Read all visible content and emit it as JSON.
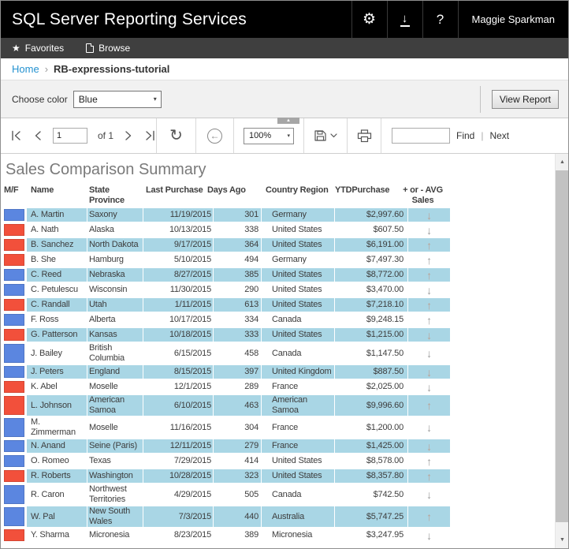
{
  "header": {
    "app_title": "SQL Server Reporting Services",
    "user_name": "Maggie Sparkman"
  },
  "nav": {
    "favorites": "Favorites",
    "browse": "Browse"
  },
  "breadcrumb": {
    "home": "Home",
    "separator": "›",
    "current": "RB-expressions-tutorial"
  },
  "parameters": {
    "label": "Choose color",
    "selected_value": "Blue",
    "view_report_label": "View Report"
  },
  "toolbar": {
    "page_value": "1",
    "of_label": "of 1",
    "zoom_value": "100%",
    "find_label": "Find",
    "find_separator": "|",
    "next_label": "Next"
  },
  "icons": {
    "gear": "⚙",
    "download_arrow": "↓",
    "help": "?",
    "star": "★",
    "caret_down": "▾",
    "refresh": "↻",
    "back_arrow": "←",
    "scroll_up": "▲",
    "scroll_down": "▼",
    "collapse_up": "▲",
    "trend": {
      "up": "↑",
      "down": "↓"
    }
  },
  "colors": {
    "squares": {
      "blue": "#5b86e0",
      "red": "#f2503b"
    },
    "row_highlight": "#a9d6e5",
    "link_blue": "#2492d0"
  },
  "report": {
    "title": "Sales Comparison Summary",
    "columns": [
      "M/F",
      "Name",
      "State Province",
      "Last Purchase",
      "Days Ago",
      "Country Region",
      "YTDPurchase",
      "+ or - AVG Sales"
    ],
    "rows": [
      {
        "mf": "blue",
        "name": "A. Martin",
        "state": "Saxony",
        "last_purchase": "11/19/2015",
        "days_ago": "301",
        "country": "Germany",
        "ytd": "$2,997.60",
        "trend": "down"
      },
      {
        "mf": "red",
        "name": "A. Nath",
        "state": "Alaska",
        "last_purchase": "10/13/2015",
        "days_ago": "338",
        "country": "United States",
        "ytd": "$607.50",
        "trend": "down"
      },
      {
        "mf": "red",
        "name": "B. Sanchez",
        "state": "North Dakota",
        "last_purchase": "9/17/2015",
        "days_ago": "364",
        "country": "United States",
        "ytd": "$6,191.00",
        "trend": "up"
      },
      {
        "mf": "red",
        "name": "B. She",
        "state": "Hamburg",
        "last_purchase": "5/10/2015",
        "days_ago": "494",
        "country": "Germany",
        "ytd": "$7,497.30",
        "trend": "up"
      },
      {
        "mf": "blue",
        "name": "C. Reed",
        "state": "Nebraska",
        "last_purchase": "8/27/2015",
        "days_ago": "385",
        "country": "United States",
        "ytd": "$8,772.00",
        "trend": "up"
      },
      {
        "mf": "blue",
        "name": "C. Petulescu",
        "state": "Wisconsin",
        "last_purchase": "11/30/2015",
        "days_ago": "290",
        "country": "United States",
        "ytd": "$3,470.00",
        "trend": "down"
      },
      {
        "mf": "red",
        "name": "C. Randall",
        "state": "Utah",
        "last_purchase": "1/11/2015",
        "days_ago": "613",
        "country": "United States",
        "ytd": "$7,218.10",
        "trend": "up"
      },
      {
        "mf": "blue",
        "name": "F. Ross",
        "state": "Alberta",
        "last_purchase": "10/17/2015",
        "days_ago": "334",
        "country": "Canada",
        "ytd": "$9,248.15",
        "trend": "up"
      },
      {
        "mf": "red",
        "name": "G. Patterson",
        "state": "Kansas",
        "last_purchase": "10/18/2015",
        "days_ago": "333",
        "country": "United States",
        "ytd": "$1,215.00",
        "trend": "down"
      },
      {
        "mf": "blue",
        "name": "J. Bailey",
        "state": "British Columbia",
        "last_purchase": "6/15/2015",
        "days_ago": "458",
        "country": "Canada",
        "ytd": "$1,147.50",
        "trend": "down"
      },
      {
        "mf": "blue",
        "name": "J. Peters",
        "state": "England",
        "last_purchase": "8/15/2015",
        "days_ago": "397",
        "country": "United Kingdom",
        "ytd": "$887.50",
        "trend": "down"
      },
      {
        "mf": "red",
        "name": "K. Abel",
        "state": "Moselle",
        "last_purchase": "12/1/2015",
        "days_ago": "289",
        "country": "France",
        "ytd": "$2,025.00",
        "trend": "down"
      },
      {
        "mf": "red",
        "name": "L. Johnson",
        "state": "American Samoa",
        "last_purchase": "6/10/2015",
        "days_ago": "463",
        "country": "American Samoa",
        "ytd": "$9,996.60",
        "trend": "up"
      },
      {
        "mf": "blue",
        "name": "M. Zimmerman",
        "state": "Moselle",
        "last_purchase": "11/16/2015",
        "days_ago": "304",
        "country": "France",
        "ytd": "$1,200.00",
        "trend": "down"
      },
      {
        "mf": "blue",
        "name": "N. Anand",
        "state": "Seine (Paris)",
        "last_purchase": "12/11/2015",
        "days_ago": "279",
        "country": "France",
        "ytd": "$1,425.00",
        "trend": "down"
      },
      {
        "mf": "blue",
        "name": "O. Romeo",
        "state": "Texas",
        "last_purchase": "7/29/2015",
        "days_ago": "414",
        "country": "United States",
        "ytd": "$8,578.00",
        "trend": "up"
      },
      {
        "mf": "red",
        "name": "R. Roberts",
        "state": "Washington",
        "last_purchase": "10/28/2015",
        "days_ago": "323",
        "country": "United States",
        "ytd": "$8,357.80",
        "trend": "up"
      },
      {
        "mf": "blue",
        "name": "R. Caron",
        "state": "Northwest Territories",
        "last_purchase": "4/29/2015",
        "days_ago": "505",
        "country": "Canada",
        "ytd": "$742.50",
        "trend": "down"
      },
      {
        "mf": "blue",
        "name": "W. Pal",
        "state": "New South Wales",
        "last_purchase": "7/3/2015",
        "days_ago": "440",
        "country": "Australia",
        "ytd": "$5,747.25",
        "trend": "up"
      },
      {
        "mf": "red",
        "name": "Y. Sharma",
        "state": "Micronesia",
        "last_purchase": "8/23/2015",
        "days_ago": "389",
        "country": "Micronesia",
        "ytd": "$3,247.95",
        "trend": "down"
      }
    ]
  }
}
